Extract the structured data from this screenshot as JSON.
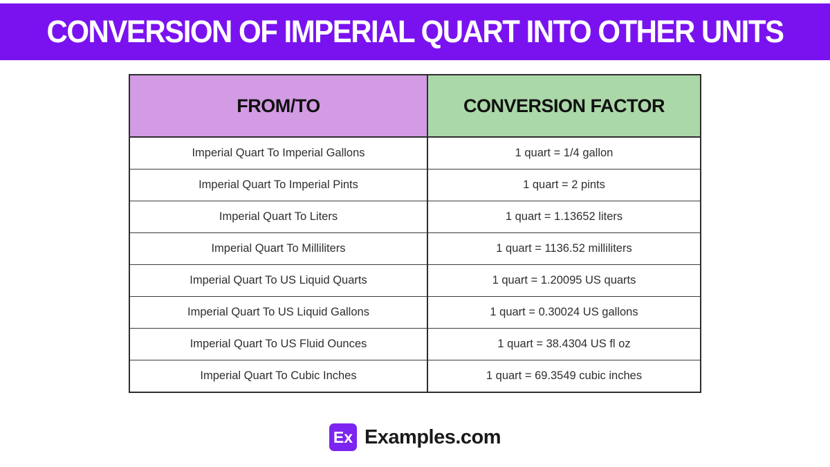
{
  "banner": {
    "title": "CONVERSION OF IMPERIAL QUART INTO OTHER UNITS"
  },
  "chart_data": {
    "type": "table",
    "title": "CONVERSION OF IMPERIAL QUART INTO OTHER UNITS",
    "columns": [
      "FROM/TO",
      "CONVERSION FACTOR"
    ],
    "rows": [
      [
        "Imperial Quart To Imperial Gallons",
        "1 quart = 1/4 gallon"
      ],
      [
        "Imperial Quart To Imperial Pints",
        "1 quart = 2 pints"
      ],
      [
        "Imperial Quart To Liters",
        "1 quart = 1.13652 liters"
      ],
      [
        "Imperial Quart To Milliliters",
        "1 quart = 1136.52 milliliters"
      ],
      [
        "Imperial Quart To US Liquid Quarts",
        "1 quart = 1.20095 US quarts"
      ],
      [
        "Imperial Quart To US Liquid Gallons",
        "1 quart = 0.30024 US gallons"
      ],
      [
        "Imperial Quart To US Fluid Ounces",
        "1 quart = 38.4304 US fl oz"
      ],
      [
        "Imperial Quart To Cubic Inches",
        "1 quart = 69.3549 cubic inches"
      ]
    ]
  },
  "footer": {
    "logo_text": "Ex",
    "brand": "Examples.com"
  },
  "colors": {
    "banner_bg": "#7a12f0",
    "header_from_bg": "#d39be3",
    "header_factor_bg": "#abd8a8",
    "table_border": "#2d2d2d",
    "logo_bg": "#7c24f0"
  }
}
